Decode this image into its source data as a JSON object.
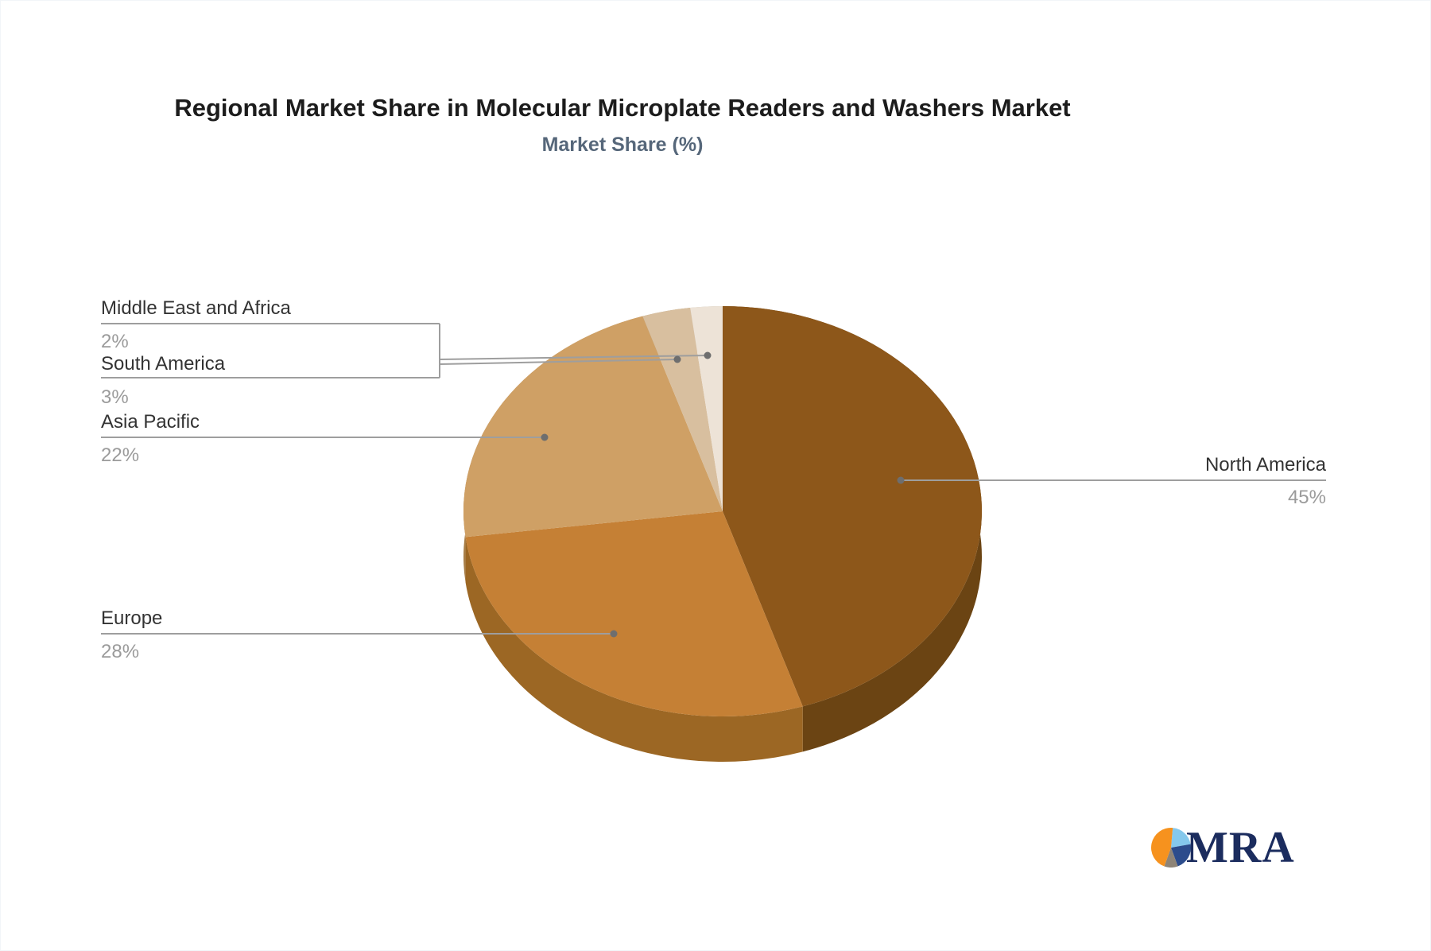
{
  "chart_data": {
    "type": "pie",
    "title": "Regional Market Share in Molecular Microplate Readers and Washers Market",
    "subtitle": "Market Share (%)",
    "unit": "%",
    "style": "3d-pie",
    "direction": "clockwise",
    "start_angle_deg": 0,
    "legend_position": "none-labels-outside-with-leader-lines",
    "slices": [
      {
        "label": "North America",
        "value": 45,
        "pct_label": "45%",
        "color": "#8D571A",
        "side_color": "#6B4413"
      },
      {
        "label": "Europe",
        "value": 28,
        "pct_label": "28%",
        "color": "#C58035",
        "side_color": "#9C6724"
      },
      {
        "label": "Asia Pacific",
        "value": 22,
        "pct_label": "22%",
        "color": "#CFA065",
        "side_color": "#A87E47"
      },
      {
        "label": "South America",
        "value": 3,
        "pct_label": "3%",
        "color": "#D8BF9F",
        "side_color": "#AD9875"
      },
      {
        "label": "Middle East and Africa",
        "value": 2,
        "pct_label": "2%",
        "color": "#EDE3D7",
        "side_color": "#BEB2A4"
      }
    ],
    "label_text_color": "#333333",
    "pct_text_color": "#9B9B9B",
    "leader_line_color": "#9E9E9E",
    "leader_dot_color": "#6E6E6E"
  },
  "logo": {
    "text": "MRA",
    "text_color": "#1B2C5E",
    "icon": {
      "name": "pie-logo-icon",
      "colors": {
        "orange": "#F6921E",
        "light_blue": "#85C8EC",
        "dark_blue": "#2C4C8C",
        "gray": "#8E8477"
      }
    }
  }
}
